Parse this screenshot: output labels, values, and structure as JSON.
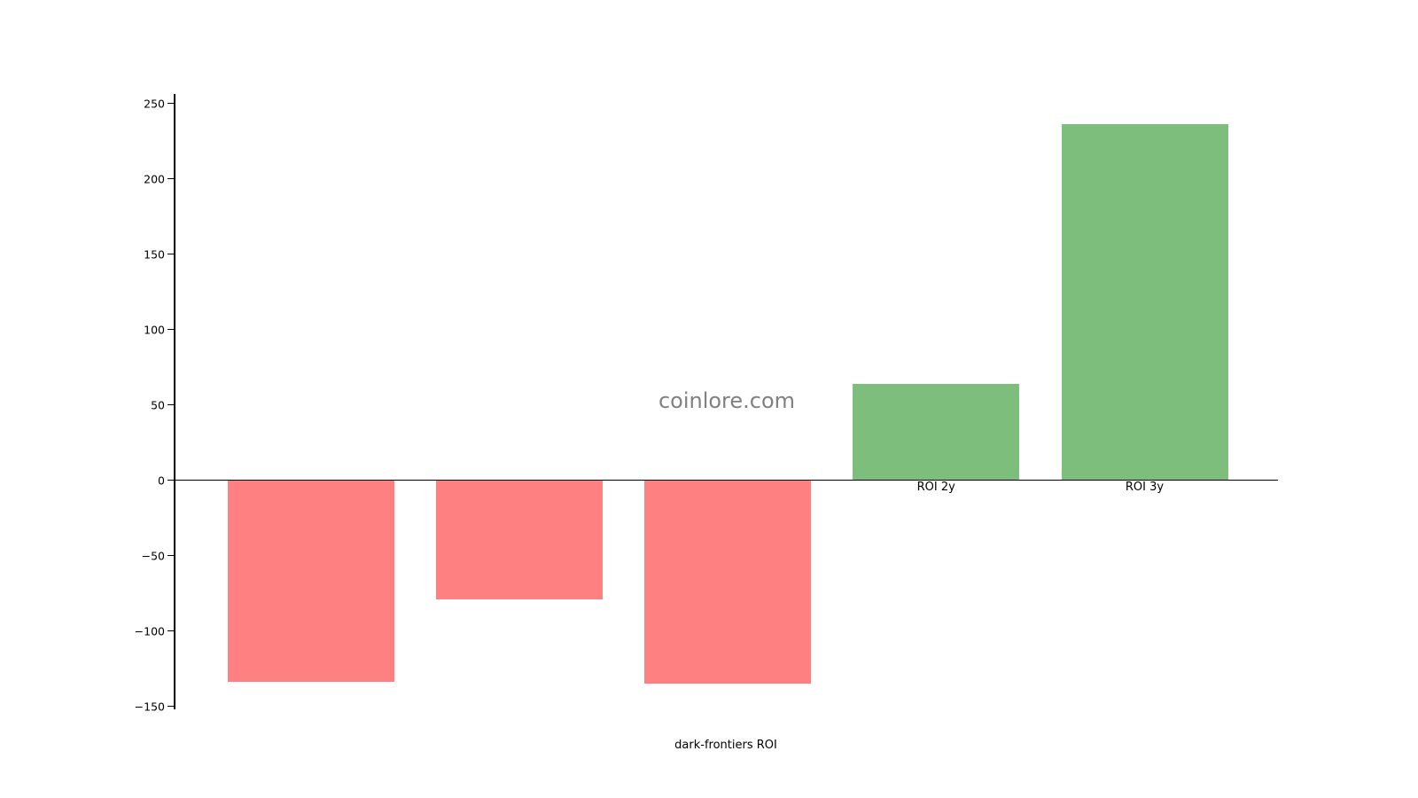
{
  "watermark": "coinlore.com",
  "colors": {
    "positive_bar": "#7DBE7D",
    "negative_bar": "#FF8080",
    "axis": "#000000",
    "watermark_text": "#808080",
    "tick_text": "#000000",
    "background": "#FFFFFF"
  },
  "chart_data": {
    "type": "bar",
    "title": "",
    "xlabel": "dark-frontiers ROI",
    "ylabel": "",
    "categories": [
      "",
      "",
      "",
      "ROI 2y",
      "ROI 3y"
    ],
    "series": [
      {
        "name": "dark-frontiers ROI",
        "values": [
          -134,
          -79,
          -135,
          64,
          236
        ]
      }
    ],
    "bar_colors": [
      "#FF8080",
      "#FF8080",
      "#FF8080",
      "#7DBE7D",
      "#7DBE7D"
    ],
    "ytick_values": [
      250,
      200,
      150,
      100,
      50,
      0,
      -50,
      -100,
      -150
    ],
    "ytick_labels": [
      "250",
      "200",
      "150",
      "100",
      "50",
      "0",
      "−50",
      "−100",
      "−150"
    ],
    "ylim": [
      -152,
      256
    ],
    "grid": false,
    "legend": "none",
    "baseline": 0,
    "annotations": [
      "coinlore.com"
    ]
  }
}
